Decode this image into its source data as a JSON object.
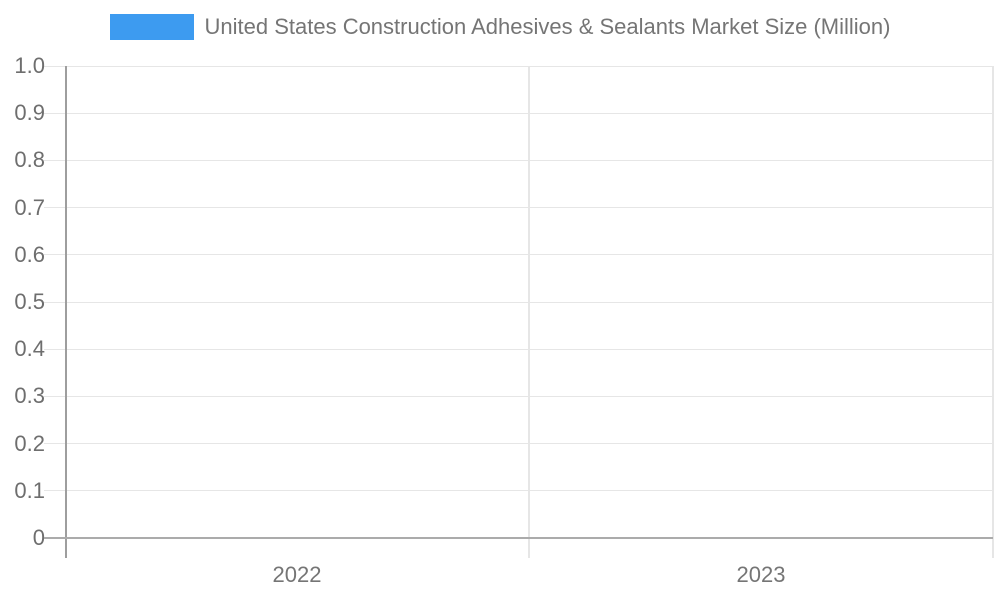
{
  "legend": {
    "label": "United States Construction Adhesives & Sealants Market Size (Million)"
  },
  "chart_data": {
    "type": "bar",
    "title": "United States Construction Adhesives & Sealants Market Size (Million)",
    "categories": [
      "2022",
      "2023"
    ],
    "series": [
      {
        "name": "United States Construction Adhesives & Sealants Market Size (Million)",
        "values": []
      }
    ],
    "xlabel": "",
    "ylabel": "",
    "ylim": [
      0,
      1.0
    ],
    "ytick_labels": [
      "1.0",
      "0.9",
      "0.8",
      "0.7",
      "0.6",
      "0.5",
      "0.4",
      "0.3",
      "0.2",
      "0.1",
      "0"
    ],
    "grid": true,
    "legend_position": "top",
    "note": "plot area is empty - no bars rendered"
  },
  "colors": {
    "series": "#3D9BF0",
    "grid": "#e6e6e6",
    "axis": "#9e9e9e",
    "axis_strong": "#ababab",
    "title_text": "#757575",
    "tick_text": "#6e6e6e"
  }
}
